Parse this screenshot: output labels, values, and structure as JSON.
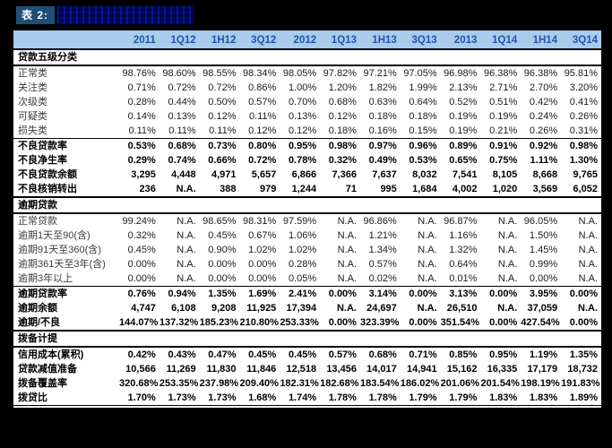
{
  "title": {
    "prefix": "表 2:",
    "redacted": true
  },
  "colors": {
    "page_background": "#000000",
    "title_chip_background": "#1f4e79",
    "title_chip_text": "#ffffff",
    "header_band_background": "#a9cbec",
    "header_text": "#2353a8",
    "table_background": "#ffffff",
    "regular_text": "#3b3b3b",
    "bold_text": "#000000"
  },
  "table": {
    "columns": [
      "2011",
      "1Q12",
      "1H12",
      "3Q12",
      "2012",
      "1Q13",
      "1H13",
      "3Q13",
      "2013",
      "1Q14",
      "1H14",
      "3Q14"
    ],
    "sections": [
      {
        "header": "贷款五级分类",
        "rows": [
          {
            "label": "正常类",
            "bold": false,
            "values": [
              "98.76%",
              "98.60%",
              "98.55%",
              "98.34%",
              "98.05%",
              "97.82%",
              "97.21%",
              "97.05%",
              "96.98%",
              "96.38%",
              "96.38%",
              "95.81%"
            ]
          },
          {
            "label": "关注类",
            "bold": false,
            "values": [
              "0.71%",
              "0.72%",
              "0.72%",
              "0.86%",
              "1.00%",
              "1.20%",
              "1.82%",
              "1.99%",
              "2.13%",
              "2.71%",
              "2.70%",
              "3.20%"
            ]
          },
          {
            "label": "次级类",
            "bold": false,
            "values": [
              "0.28%",
              "0.44%",
              "0.50%",
              "0.57%",
              "0.70%",
              "0.68%",
              "0.63%",
              "0.64%",
              "0.52%",
              "0.51%",
              "0.42%",
              "0.41%"
            ]
          },
          {
            "label": "可疑类",
            "bold": false,
            "values": [
              "0.14%",
              "0.13%",
              "0.12%",
              "0.11%",
              "0.13%",
              "0.12%",
              "0.18%",
              "0.18%",
              "0.19%",
              "0.19%",
              "0.24%",
              "0.26%"
            ]
          },
          {
            "label": "损失类",
            "bold": false,
            "values": [
              "0.11%",
              "0.11%",
              "0.11%",
              "0.12%",
              "0.12%",
              "0.18%",
              "0.16%",
              "0.15%",
              "0.19%",
              "0.21%",
              "0.26%",
              "0.31%"
            ]
          },
          {
            "label": "不良贷款率",
            "bold": true,
            "rule_above": true,
            "values": [
              "0.53%",
              "0.68%",
              "0.73%",
              "0.80%",
              "0.95%",
              "0.98%",
              "0.97%",
              "0.96%",
              "0.89%",
              "0.91%",
              "0.92%",
              "0.98%"
            ]
          },
          {
            "label": "不良净生率",
            "bold": true,
            "values": [
              "0.29%",
              "0.74%",
              "0.66%",
              "0.72%",
              "0.78%",
              "0.32%",
              "0.49%",
              "0.53%",
              "0.65%",
              "0.75%",
              "1.11%",
              "1.30%"
            ]
          },
          {
            "label": "不良贷款余额",
            "bold": true,
            "values": [
              "3,295",
              "4,448",
              "4,971",
              "5,657",
              "6,866",
              "7,366",
              "7,637",
              "8,032",
              "7,541",
              "8,105",
              "8,668",
              "9,765"
            ]
          },
          {
            "label": "不良核销转出",
            "bold": true,
            "values": [
              "236",
              "N.A.",
              "388",
              "979",
              "1,244",
              "71",
              "995",
              "1,684",
              "4,002",
              "1,020",
              "3,569",
              "6,052"
            ]
          }
        ]
      },
      {
        "header": "逾期贷款",
        "rows": [
          {
            "label": "正常贷款",
            "bold": false,
            "values": [
              "99.24%",
              "N.A.",
              "98.65%",
              "98.31%",
              "97.59%",
              "N.A.",
              "96.86%",
              "N.A.",
              "96.87%",
              "N.A.",
              "96.05%",
              "N.A."
            ]
          },
          {
            "label": "逾期1天至90(含)",
            "bold": false,
            "values": [
              "0.32%",
              "N.A.",
              "0.45%",
              "0.67%",
              "1.06%",
              "N.A.",
              "1.21%",
              "N.A.",
              "1.16%",
              "N.A.",
              "1.50%",
              "N.A."
            ]
          },
          {
            "label": "逾期91天至360(含)",
            "bold": false,
            "values": [
              "0.45%",
              "N.A.",
              "0.90%",
              "1.02%",
              "1.02%",
              "N.A.",
              "1.34%",
              "N.A.",
              "1.32%",
              "N.A.",
              "1.45%",
              "N.A."
            ]
          },
          {
            "label": "逾期361天至3年(含)",
            "bold": false,
            "values": [
              "0.00%",
              "N.A.",
              "0.00%",
              "0.00%",
              "0.28%",
              "N.A.",
              "0.57%",
              "N.A.",
              "0.64%",
              "N.A.",
              "0.99%",
              "N.A."
            ]
          },
          {
            "label": "逾期3年以上",
            "bold": false,
            "values": [
              "0.00%",
              "N.A.",
              "0.00%",
              "0.00%",
              "0.05%",
              "N.A.",
              "0.02%",
              "N.A.",
              "0.01%",
              "N.A.",
              "0.00%",
              "N.A."
            ]
          },
          {
            "label": "逾期贷款率",
            "bold": true,
            "rule_above": true,
            "values": [
              "0.76%",
              "0.94%",
              "1.35%",
              "1.69%",
              "2.41%",
              "0.00%",
              "3.14%",
              "0.00%",
              "3.13%",
              "0.00%",
              "3.95%",
              "0.00%"
            ]
          },
          {
            "label": "逾期余额",
            "bold": true,
            "values": [
              "4,747",
              "6,108",
              "9,208",
              "11,925",
              "17,394",
              "N.A.",
              "24,697",
              "N.A.",
              "26,510",
              "N.A.",
              "37,059",
              "N.A."
            ]
          },
          {
            "label": "逾期/不良",
            "bold": true,
            "values": [
              "144.07%",
              "137.32%",
              "185.23%",
              "210.80%",
              "253.33%",
              "0.00%",
              "323.39%",
              "0.00%",
              "351.54%",
              "0.00%",
              "427.54%",
              "0.00%"
            ]
          }
        ]
      },
      {
        "header": "拨备计提",
        "rows": [
          {
            "label": "信用成本(累积)",
            "bold": true,
            "values": [
              "0.42%",
              "0.43%",
              "0.47%",
              "0.45%",
              "0.45%",
              "0.57%",
              "0.68%",
              "0.71%",
              "0.85%",
              "0.95%",
              "1.19%",
              "1.35%"
            ]
          },
          {
            "label": "贷款减值准备",
            "bold": true,
            "values": [
              "10,566",
              "11,269",
              "11,830",
              "11,846",
              "12,518",
              "13,456",
              "14,017",
              "14,941",
              "15,162",
              "16,335",
              "17,179",
              "18,732"
            ]
          },
          {
            "label": "拨备覆盖率",
            "bold": true,
            "values": [
              "320.68%",
              "253.35%",
              "237.98%",
              "209.40%",
              "182.31%",
              "182.68%",
              "183.54%",
              "186.02%",
              "201.06%",
              "201.54%",
              "198.19%",
              "191.83%"
            ]
          },
          {
            "label": "拨贷比",
            "bold": true,
            "values": [
              "1.70%",
              "1.73%",
              "1.73%",
              "1.68%",
              "1.74%",
              "1.78%",
              "1.78%",
              "1.79%",
              "1.79%",
              "1.83%",
              "1.83%",
              "1.89%"
            ]
          }
        ]
      }
    ]
  }
}
